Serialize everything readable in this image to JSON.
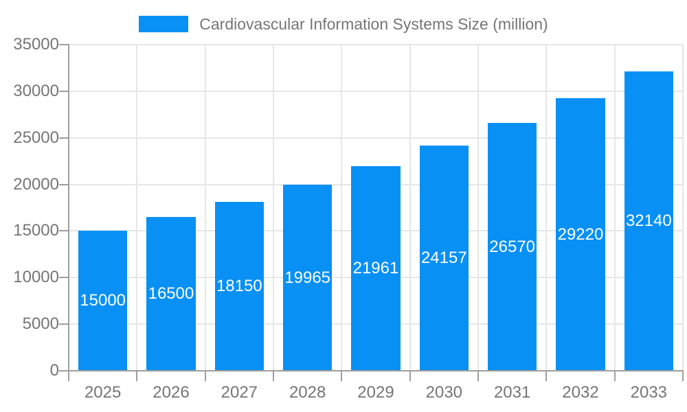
{
  "colors": {
    "bar": "#0890f5",
    "grid": "#e6e6e6",
    "axis": "#9e9e9e",
    "text": "#757575",
    "bar_label": "#ffffff",
    "background": "#ffffff"
  },
  "chart_data": {
    "type": "bar",
    "title": "Cardiovascular Information Systems Size (million)",
    "legend": {
      "position": "top",
      "entries": [
        "Cardiovascular Information Systems Size (million)"
      ]
    },
    "categories": [
      "2025",
      "2026",
      "2027",
      "2028",
      "2029",
      "2030",
      "2031",
      "2032",
      "2033"
    ],
    "values": [
      15000,
      16500,
      18150,
      19965,
      21961,
      24157,
      26570,
      29220,
      32140
    ],
    "xlabel": "",
    "ylabel": "",
    "ylim": [
      0,
      35000
    ],
    "ytick_step": 5000,
    "grid": true,
    "bar_value_labels_inside": true
  }
}
